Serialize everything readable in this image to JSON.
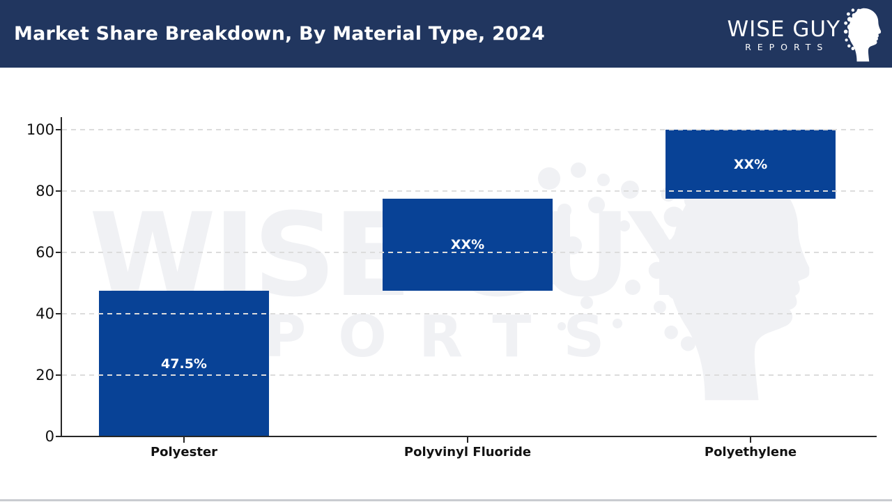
{
  "header": {
    "title": "Market Share Breakdown, By Material Type, 2024",
    "logo": {
      "brand": "WISE GUY",
      "sub": "REPORTS"
    }
  },
  "watermark": {
    "brand": "WISE GUY",
    "sub": "REPORTS"
  },
  "chart_data": {
    "type": "bar",
    "variant": "floating-waterfall",
    "title": "Market Share Breakdown, By Material Type, 2024",
    "categories": [
      "Polyester",
      "Polyvinyl Fluoride",
      "Polyethylene"
    ],
    "bars": [
      {
        "category": "Polyester",
        "label": "47.5%",
        "start": 0,
        "end": 47.5,
        "span": 47.5
      },
      {
        "category": "Polyvinyl Fluoride",
        "label": "XX%",
        "start": 47.5,
        "end": 77.5,
        "span": 30
      },
      {
        "category": "Polyethylene",
        "label": "XX%",
        "start": 77.5,
        "end": 100,
        "span": 22.5
      }
    ],
    "yticks": [
      {
        "label": "0",
        "value": 0
      },
      {
        "label": "20",
        "value": 20
      },
      {
        "label": "40",
        "value": 40
      },
      {
        "label": "60",
        "value": 60
      },
      {
        "label": "80",
        "value": 80
      },
      {
        "label": "100",
        "value": 100
      }
    ],
    "ylim": [
      0,
      104
    ],
    "xlabel": "",
    "ylabel": "",
    "grid": "horizontal-dashed",
    "legend": "none",
    "bar_color": "#084296",
    "bar_label_color": "#ffffff"
  },
  "colors": {
    "header_bg": "#21365f",
    "bar": "#084296",
    "page_bg": "#ffffff",
    "axis": "#262626",
    "gridline": "#dcdcdc",
    "watermark": "#f0f1f4",
    "bottom_rule": "#c9cbd0"
  }
}
